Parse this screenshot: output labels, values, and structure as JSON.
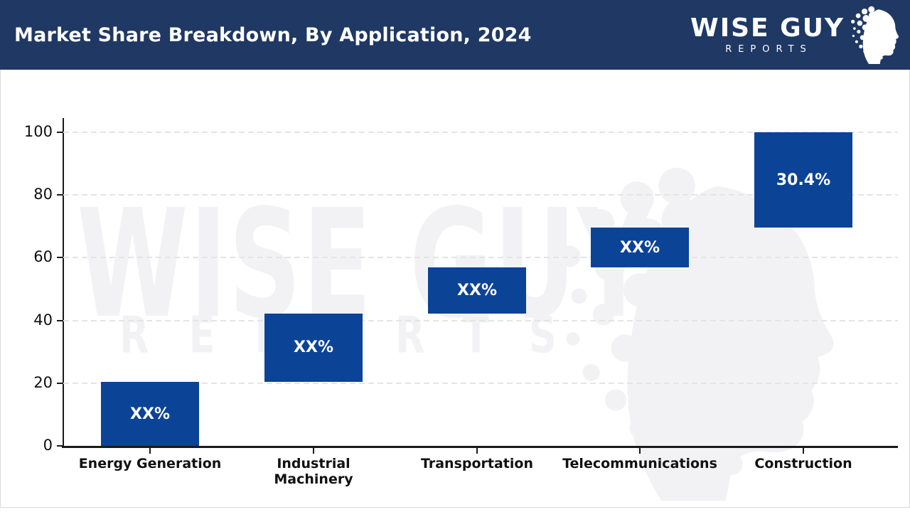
{
  "header": {
    "title": "Market Share Breakdown, By Application, 2024"
  },
  "logo": {
    "line1": "WISE GUY",
    "line2": "REPORTS",
    "face_icon": "dotted-head-profile"
  },
  "watermark": {
    "line1": "WISE GUY",
    "line2": "REPORTS",
    "face_icon": "dotted-head-profile"
  },
  "colors": {
    "header_bg": "#1f3864",
    "bar": "#0b4397",
    "bar_label": "#ffffff",
    "gridline": "#e4e4e6",
    "axis": "#1a1a1a",
    "watermark": "#f2f2f5"
  },
  "chart_data": {
    "type": "bar",
    "subtype": "waterfall",
    "title": "Market Share Breakdown, By Application, 2024",
    "categories": [
      "Energy Generation",
      "Industrial\nMachinery",
      "Transportation",
      "Telecommunications",
      "Construction"
    ],
    "segments": [
      {
        "category": "Energy Generation",
        "start": 0,
        "end": 20.4,
        "value_label": "XX%"
      },
      {
        "category": "Industrial Machinery",
        "start": 20.4,
        "end": 42.2,
        "value_label": "XX%"
      },
      {
        "category": "Transportation",
        "start": 42.2,
        "end": 56.9,
        "value_label": "XX%"
      },
      {
        "category": "Telecommunications",
        "start": 56.9,
        "end": 69.6,
        "value_label": "XX%"
      },
      {
        "category": "Construction",
        "start": 69.6,
        "end": 100,
        "value_label": "30.4%"
      }
    ],
    "yticks": [
      0,
      20,
      40,
      60,
      80,
      100
    ],
    "ylim": [
      0,
      104
    ],
    "xlabel": "",
    "ylabel": "",
    "grid": "horizontal-dashed",
    "legend": "none"
  }
}
